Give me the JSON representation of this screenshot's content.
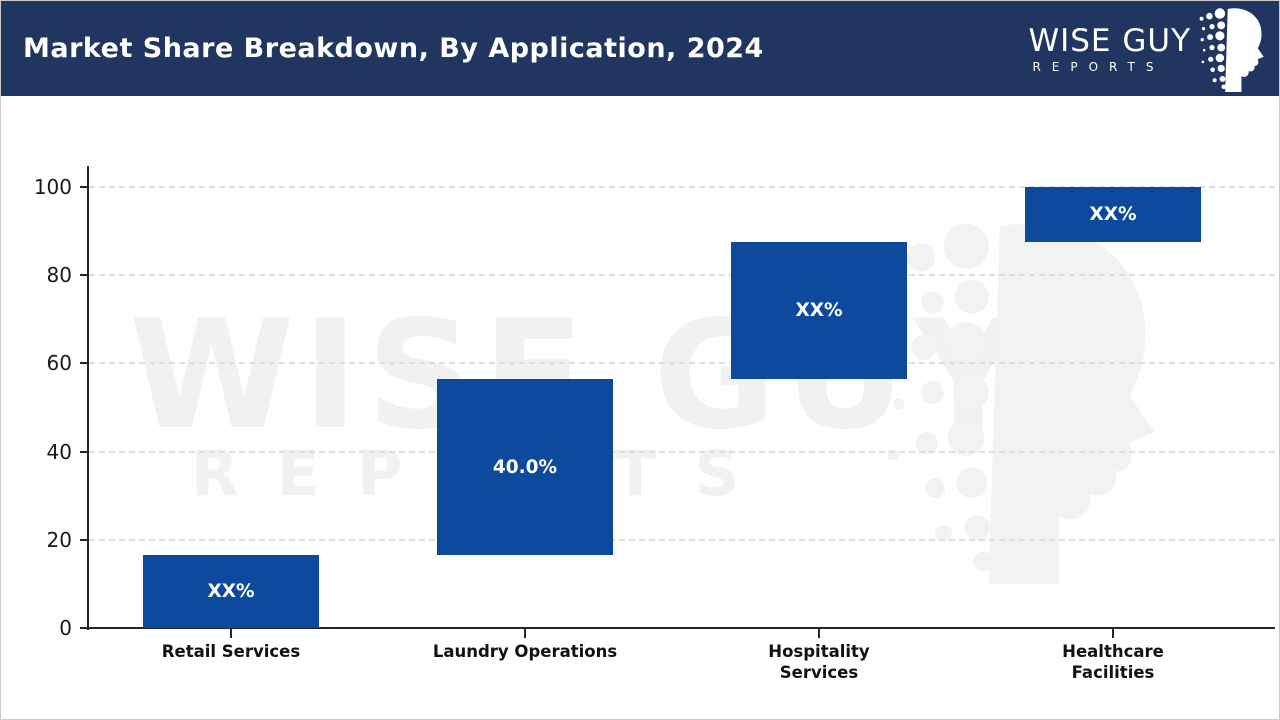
{
  "header": {
    "title": "Market Share Breakdown, By Application, 2024",
    "bg_color": "#203660",
    "logo": {
      "name": "WISE GUY",
      "subtitle": "REPORTS"
    }
  },
  "watermark": {
    "line1": "WISE GUY",
    "line2": "REPORTS"
  },
  "colors": {
    "bar": "#0d4a9e",
    "header_bg": "#203660",
    "gridline": "#dedede",
    "axis": "#262626",
    "watermark": "#f1f1f1",
    "watermark_head": "#f2f2f2",
    "frame_border": "#c9c9c9"
  },
  "chart_data": {
    "type": "bar",
    "subtype": "floating-waterfall",
    "title": "Market Share Breakdown, By Application, 2024",
    "xlabel": "",
    "ylabel": "",
    "ylim": [
      0,
      100
    ],
    "yticks": [
      0,
      20,
      40,
      60,
      80,
      100
    ],
    "grid": "horizontal-dashed",
    "legend": "none",
    "categories": [
      "Retail Services",
      "Laundry Operations",
      "Hospitality\nServices",
      "Healthcare\nFacilities"
    ],
    "bars": [
      {
        "category": "Retail Services",
        "start": 0,
        "end": 16.5,
        "label": "XX%"
      },
      {
        "category": "Laundry Operations",
        "start": 16.5,
        "end": 56.5,
        "label": "40.0%"
      },
      {
        "category": "Hospitality Services",
        "start": 56.5,
        "end": 87.5,
        "label": "XX%"
      },
      {
        "category": "Healthcare Facilities",
        "start": 87.5,
        "end": 100,
        "label": "XX%"
      }
    ],
    "bar_color": "#0d4a9e"
  }
}
